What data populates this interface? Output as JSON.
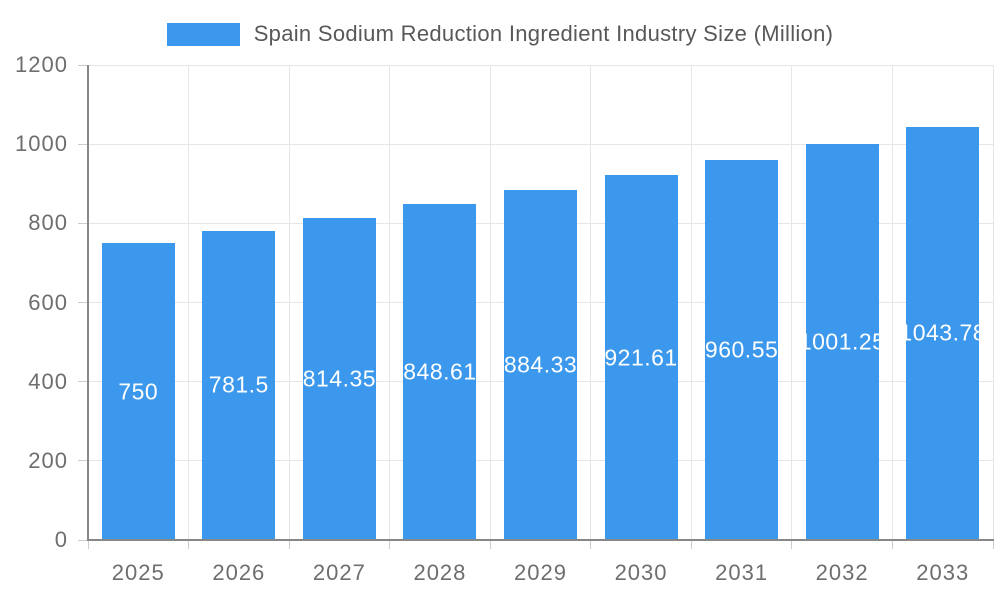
{
  "chart_data": {
    "type": "bar",
    "title": "Spain Sodium Reduction Ingredient Industry Size (Million)",
    "categories": [
      "2025",
      "2026",
      "2027",
      "2028",
      "2029",
      "2030",
      "2031",
      "2032",
      "2033"
    ],
    "values": [
      750,
      781.5,
      814.35,
      848.61,
      884.33,
      921.61,
      960.55,
      1001.25,
      1043.78
    ],
    "value_labels": [
      "750",
      "781.5",
      "814.35",
      "848.61",
      "884.33",
      "921.61",
      "960.55",
      "1001.25",
      "1043.78"
    ],
    "ylim": [
      0,
      1200
    ],
    "yticks": [
      0,
      200,
      400,
      600,
      800,
      1000,
      1200
    ],
    "xlabel": "",
    "ylabel": "",
    "grid": true,
    "legend_position": "top",
    "colors": {
      "bar": "#3b98ec",
      "grid": "#e6e6e6",
      "axis": "#878787",
      "tick": "#cccccc",
      "axis_label": "#6e6e6e",
      "title": "#58585a",
      "bar_label": "#ffffff",
      "background": "#ffffff"
    }
  }
}
